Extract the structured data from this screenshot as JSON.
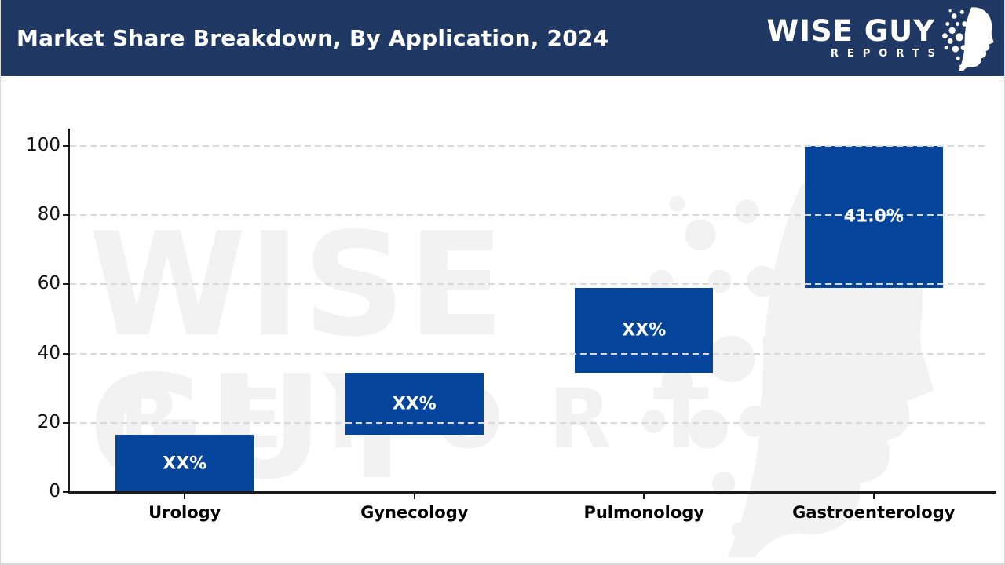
{
  "header": {
    "title": "Market Share Breakdown, By Application, 2024",
    "logo": {
      "line1": "WISE GUY",
      "line2": "REPORTS"
    }
  },
  "watermark": {
    "line1": "WISE GUY",
    "line2": "REPORTS"
  },
  "colors": {
    "header_bg": "#1f3864",
    "bar": "#04449b",
    "bar_label": "#ffffff",
    "axis": "#1a1a1a",
    "grid": "#d9d9d9",
    "watermark": "#f2f2f2",
    "title_text": "#ffffff"
  },
  "chart_data": {
    "type": "bar",
    "subtype": "waterfall",
    "title": "Market Share Breakdown, By Application, 2024",
    "categories": [
      "Urology",
      "Gynecology",
      "Pulmonology",
      "Gastroenterology"
    ],
    "bars": [
      {
        "category": "Urology",
        "start": 0,
        "end": 16.5,
        "label": "XX%"
      },
      {
        "category": "Gynecology",
        "start": 16.5,
        "end": 34.5,
        "label": "XX%"
      },
      {
        "category": "Pulmonology",
        "start": 34.5,
        "end": 59.0,
        "label": "XX%"
      },
      {
        "category": "Gastroenterology",
        "start": 59.0,
        "end": 100.0,
        "label": "41.0%"
      }
    ],
    "y_ticks": [
      0,
      20,
      40,
      60,
      80,
      100
    ],
    "ylim": [
      0,
      105
    ],
    "xlabel": "",
    "ylabel": "",
    "grid": "horizontal-dashed",
    "legend": "none"
  }
}
